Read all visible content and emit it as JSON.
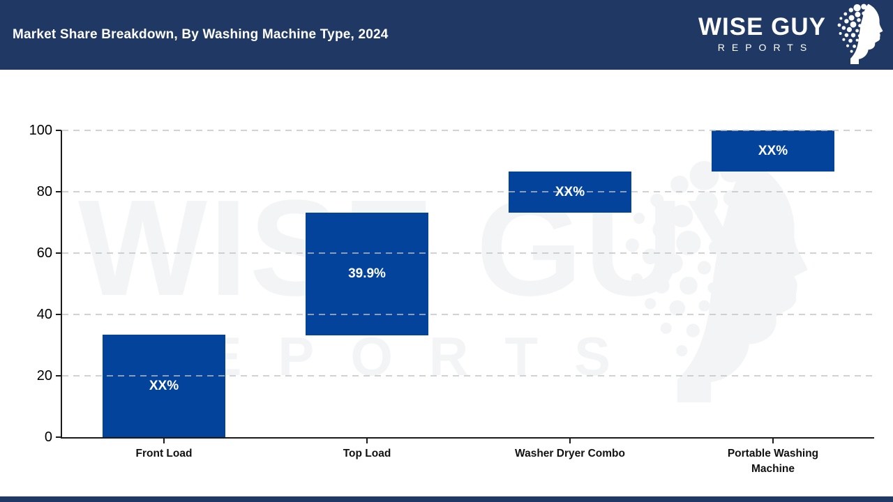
{
  "header": {
    "title": "Market Share Breakdown, By Washing Machine Type, 2024",
    "logo": {
      "wordmark": "WISE GUY",
      "sub": "REPORTS"
    }
  },
  "watermark": {
    "wordmark": "WISE GUY",
    "sub": "REPORTS"
  },
  "colors": {
    "header_bg": "#1F3864",
    "footer_bg": "#1F3864",
    "bar": "#04439C",
    "bar_label_text": "#FFFFFF",
    "axis": "#1A1A1A",
    "gridline": "rgba(190,193,197,0.72)",
    "watermark": "#F3F4F6",
    "title_text": "#FFFFFF"
  },
  "chart_data": {
    "type": "bar",
    "variant": "waterfall",
    "title": "Market Share Breakdown, By Washing Machine Type, 2024",
    "xlabel": "",
    "ylabel": "",
    "ylim": [
      0,
      100
    ],
    "yticks": [
      0,
      20,
      40,
      60,
      80,
      100
    ],
    "grid": "horizontal-dashed",
    "legend": "none",
    "categories": [
      "Front Load",
      "Top Load",
      "Washer Dryer Combo",
      "Portable Washing Machine"
    ],
    "segments": [
      {
        "category": "Front Load",
        "start": 0,
        "end": 33.3,
        "label": "XX%"
      },
      {
        "category": "Top Load",
        "start": 33.3,
        "end": 73.2,
        "label": "39.9%"
      },
      {
        "category": "Washer Dryer Combo",
        "start": 73.2,
        "end": 86.6,
        "label": "XX%"
      },
      {
        "category": "Portable Washing Machine",
        "start": 86.6,
        "end": 99.9,
        "label": "XX%"
      }
    ]
  }
}
